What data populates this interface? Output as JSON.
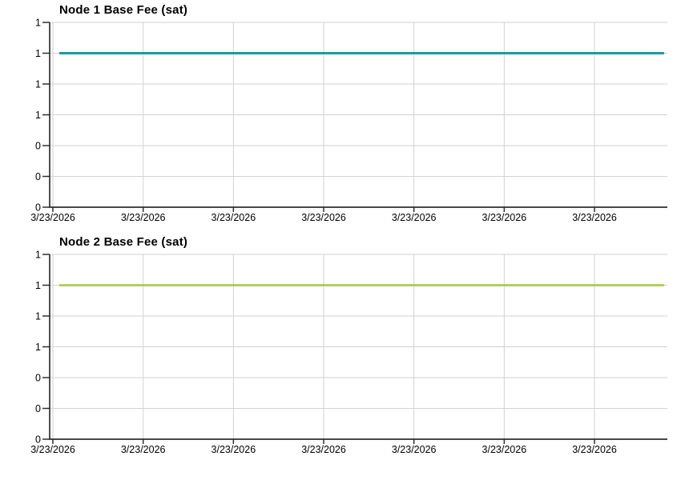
{
  "page": {
    "background": "#ffffff"
  },
  "colors": {
    "grid": "#d2d2d2",
    "axis": "#2f2f2f",
    "tick_text": "#000000",
    "title_text": "#000000"
  },
  "chart_data": [
    {
      "type": "line",
      "title": "Node 1 Base Fee (sat)",
      "xlabel": "",
      "ylabel": "",
      "ylim": [
        0,
        1.2
      ],
      "y_ticks": [
        1.2,
        1,
        0.8,
        0.6,
        0.4,
        0.2,
        0
      ],
      "y_tick_labels": [
        "1",
        "1",
        "1",
        "1",
        "0",
        "0",
        "0"
      ],
      "x_tick_labels": [
        "3/23/2026",
        "3/23/2026",
        "3/23/2026",
        "3/23/2026",
        "3/23/2026",
        "3/23/2026",
        "3/23/2026"
      ],
      "grid": true,
      "legend_position": "none",
      "series": [
        {
          "name": "Node 1 Base Fee",
          "color": "#1b9aa0",
          "stroke_width": 3,
          "values": [
            1,
            1,
            1,
            1,
            1,
            1,
            1,
            1
          ]
        }
      ]
    },
    {
      "type": "line",
      "title": "Node 2 Base Fee (sat)",
      "xlabel": "",
      "ylabel": "",
      "ylim": [
        0,
        1.2
      ],
      "y_ticks": [
        1.2,
        1,
        0.8,
        0.6,
        0.4,
        0.2,
        0
      ],
      "y_tick_labels": [
        "1",
        "1",
        "1",
        "1",
        "0",
        "0",
        "0"
      ],
      "x_tick_labels": [
        "3/23/2026",
        "3/23/2026",
        "3/23/2026",
        "3/23/2026",
        "3/23/2026",
        "3/23/2026",
        "3/23/2026"
      ],
      "grid": true,
      "legend_position": "none",
      "series": [
        {
          "name": "Node 2 Base Fee",
          "color": "#a3c939",
          "stroke_width": 2.5,
          "values": [
            1,
            1,
            1,
            1,
            1,
            1,
            1,
            1
          ]
        }
      ]
    }
  ]
}
